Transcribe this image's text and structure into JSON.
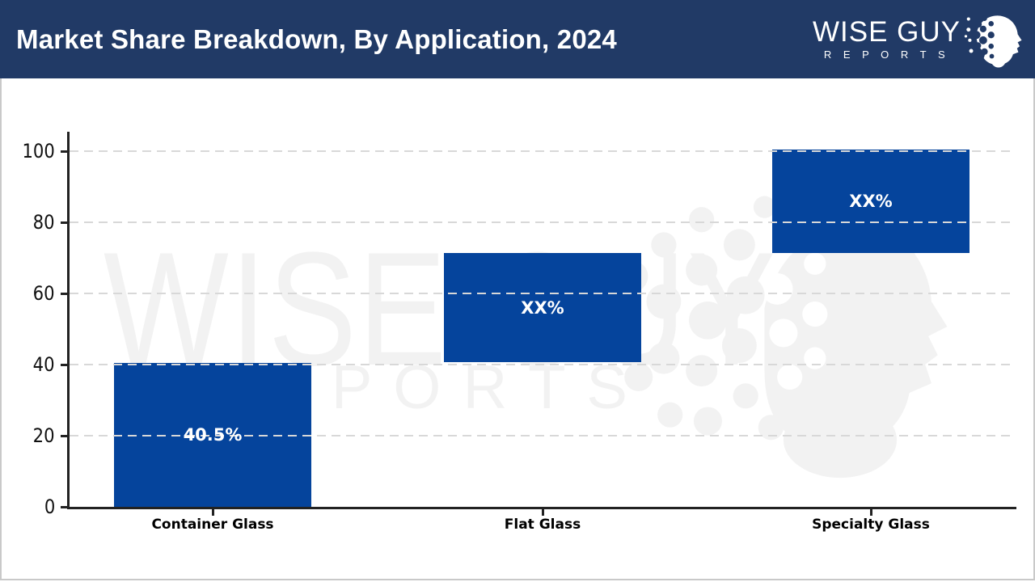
{
  "header": {
    "title": "Market Share Breakdown, By Application, 2024",
    "logo": {
      "line1": "WISE GUY",
      "line2": "R E P O R T S"
    }
  },
  "watermark": {
    "line1": "WISE GUY",
    "line2": "R E P O R T S"
  },
  "colors": {
    "header_bg": "#213a66",
    "bar": "#05449c",
    "gridline": "#d8d8d8",
    "axis": "#222222",
    "watermark": "#f2f2f2",
    "border": "#c9c9c9",
    "bar_label_text": "#ffffff"
  },
  "chart_data": {
    "type": "bar",
    "subtype": "waterfall",
    "title": "Market Share Breakdown, By Application, 2024",
    "categories": [
      "Container Glass",
      "Flat Glass",
      "Specialty Glass"
    ],
    "segments": [
      {
        "category": "Container Glass",
        "start": 0,
        "end": 40.5,
        "label": "40.5%"
      },
      {
        "category": "Flat Glass",
        "start": 40.6,
        "end": 71.4,
        "label": "XX%"
      },
      {
        "category": "Specialty Glass",
        "start": 71.4,
        "end": 100.4,
        "label": "XX%"
      }
    ],
    "xlabel": "",
    "ylabel": "",
    "ylim": [
      0,
      105
    ],
    "yticks": [
      0,
      20,
      40,
      60,
      80,
      100
    ],
    "grid": "horizontal dashed, drawn over bars",
    "legend": "none",
    "bar_color": "#05449c",
    "value_label_color": "#ffffff"
  }
}
